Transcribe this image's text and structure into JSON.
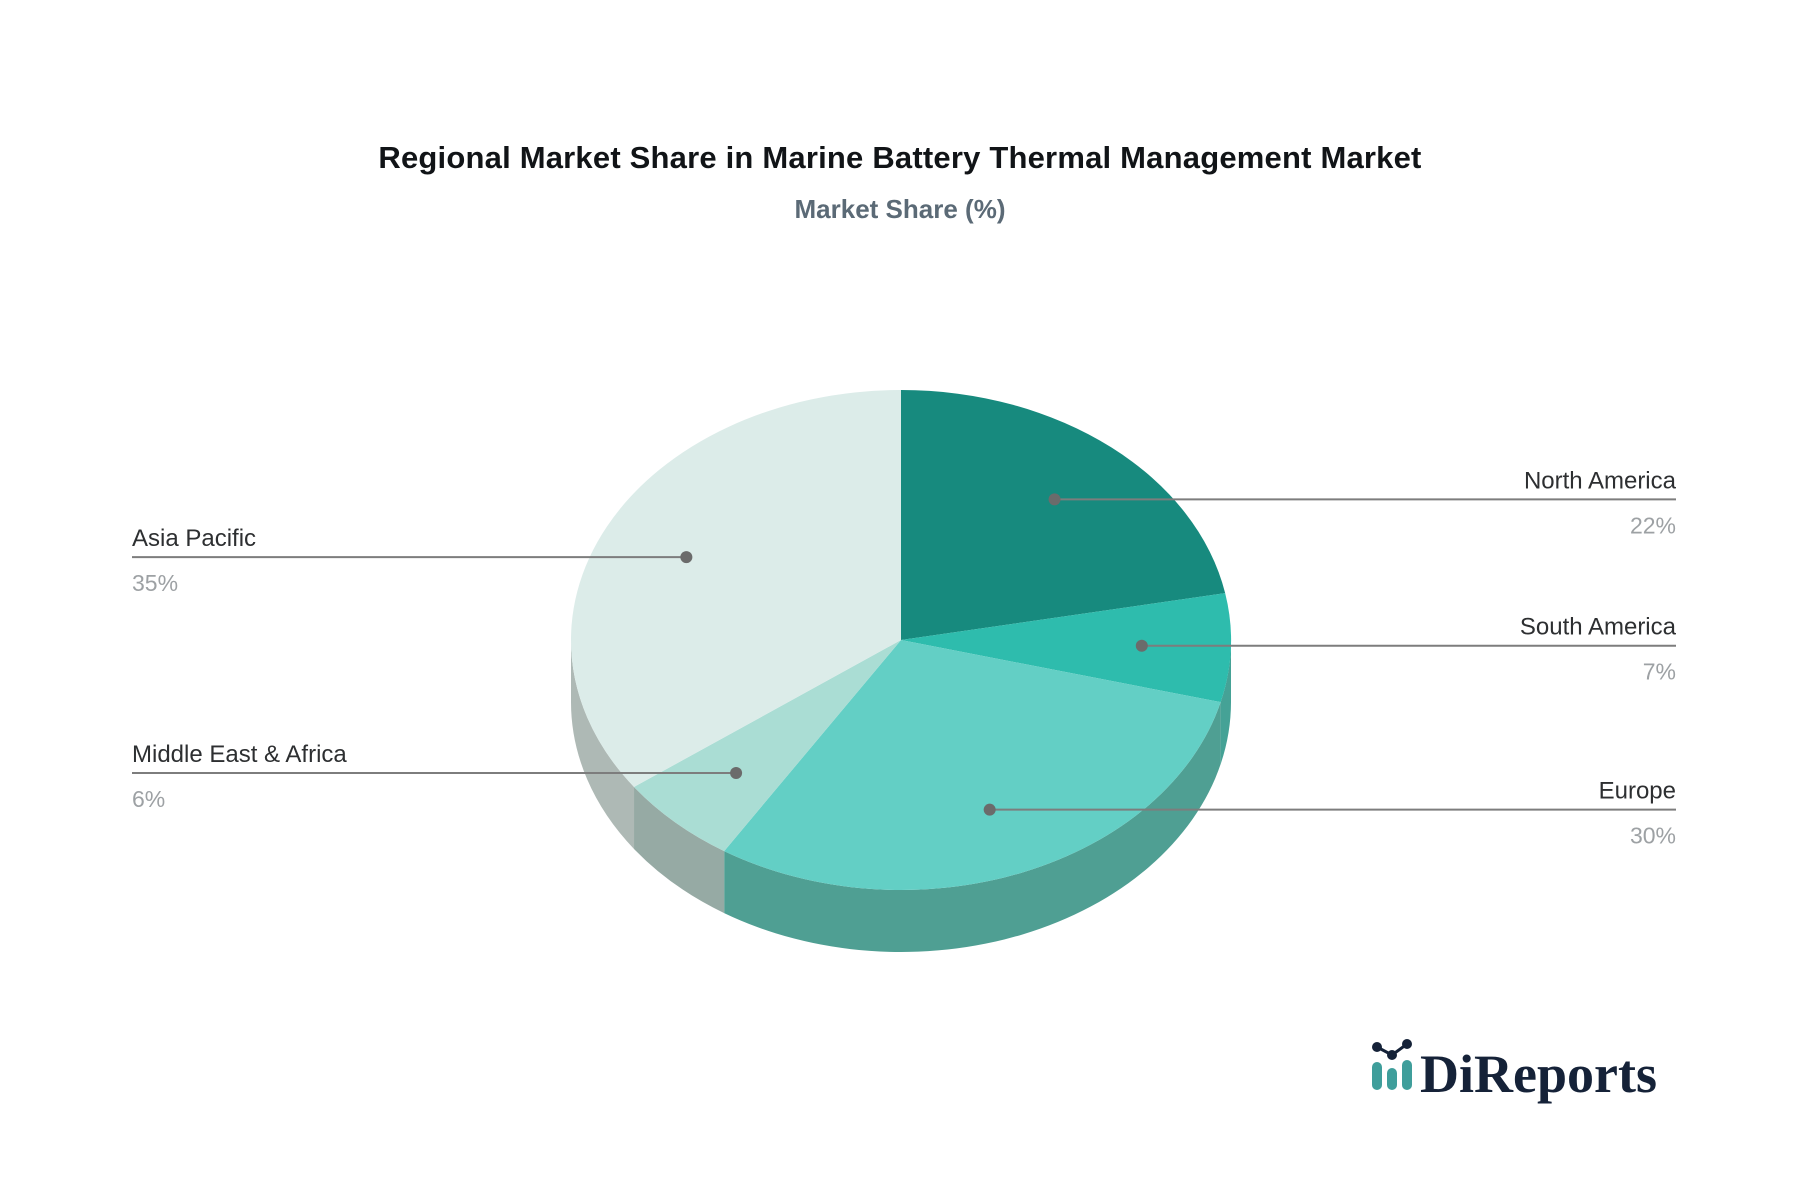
{
  "header": {
    "title": "Regional Market Share in Marine Battery Thermal Management Market",
    "subtitle": "Market Share (%)"
  },
  "chart_data": {
    "type": "pie",
    "title": "Regional Market Share in Marine Battery Thermal Management Market",
    "subtitle": "Market Share (%)",
    "unit": "%",
    "style": "3d-pie",
    "start_angle": "12 o'clock",
    "direction": "clockwise",
    "legend_position": "none",
    "labels": "leader-lines with name above and percent below",
    "slices": [
      {
        "label": "North America",
        "value": 22,
        "display": "22%",
        "color": "#178a7e",
        "side_color": "#37a295",
        "label_side": "right"
      },
      {
        "label": "South America",
        "value": 7,
        "display": "7%",
        "color": "#2ebcad",
        "side_color": "#45a296",
        "label_side": "right"
      },
      {
        "label": "Europe",
        "value": 30,
        "display": "30%",
        "color": "#63cfc5",
        "side_color": "#4f9f93",
        "label_side": "right"
      },
      {
        "label": "Middle East & Africa",
        "value": 6,
        "display": "6%",
        "color": "#aaddd4",
        "side_color": "#96aaa4",
        "label_side": "left"
      },
      {
        "label": "Asia Pacific",
        "value": 35,
        "display": "35%",
        "color": "#dcece9",
        "side_color": "#aeb9b5",
        "label_side": "left"
      }
    ]
  },
  "colors": {
    "background": "#ffffff",
    "title": "#111417",
    "subtitle": "#5b6a76",
    "label_name": "#2d2f31",
    "label_value": "#9da1a4",
    "leader_line": "#7d7d7d",
    "leader_dot": "#6b6b6b",
    "logo_text": "#152238",
    "logo_bars": "#3f9e9b"
  },
  "logo": {
    "text": "DiReports"
  }
}
